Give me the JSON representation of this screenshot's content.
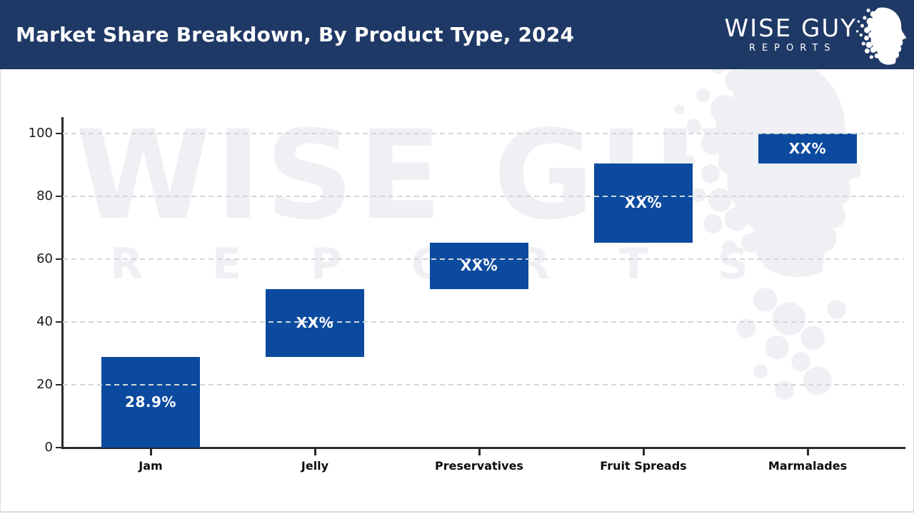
{
  "header": {
    "title": "Market Share Breakdown, By Product Type, 2024",
    "bg_color": "#1f3966",
    "logo": {
      "wordmark": "WISE GUY",
      "reports": "REPORTS"
    }
  },
  "watermark": {
    "wordmark": "WISE GUY",
    "reports": "R E P O R T S"
  },
  "chart_data": {
    "type": "bar",
    "subtype": "floating-waterfall",
    "title": "Market Share Breakdown, By Product Type, 2024",
    "categories": [
      "Jam",
      "Jelly",
      "Preservatives",
      "Fruit Spreads",
      "Marmalades"
    ],
    "series": [
      {
        "name": "Market Share (%)",
        "segments": [
          {
            "category": "Jam",
            "start": 0,
            "end": 28.9,
            "label": "28.9%"
          },
          {
            "category": "Jelly",
            "start": 28.9,
            "end": 50.5,
            "label": "XX%"
          },
          {
            "category": "Preservatives",
            "start": 50.5,
            "end": 65.2,
            "label": "XX%"
          },
          {
            "category": "Fruit Spreads",
            "start": 65.2,
            "end": 90.5,
            "label": "XX%"
          },
          {
            "category": "Marmalades",
            "start": 90.5,
            "end": 100,
            "label": "XX%"
          }
        ]
      }
    ],
    "xlabel": "",
    "ylabel": "",
    "ylim": [
      0,
      100
    ],
    "yticks": [
      0,
      20,
      40,
      60,
      80,
      100
    ],
    "grid": "horizontal-dashed-over-bars",
    "legend": "none",
    "bar_color": "#0b4a9e",
    "bar_label_color": "#ffffff",
    "grid_color": "#d4d6db",
    "axis_color": "#2a2a2a",
    "watermark_color": "#eff0f3"
  }
}
